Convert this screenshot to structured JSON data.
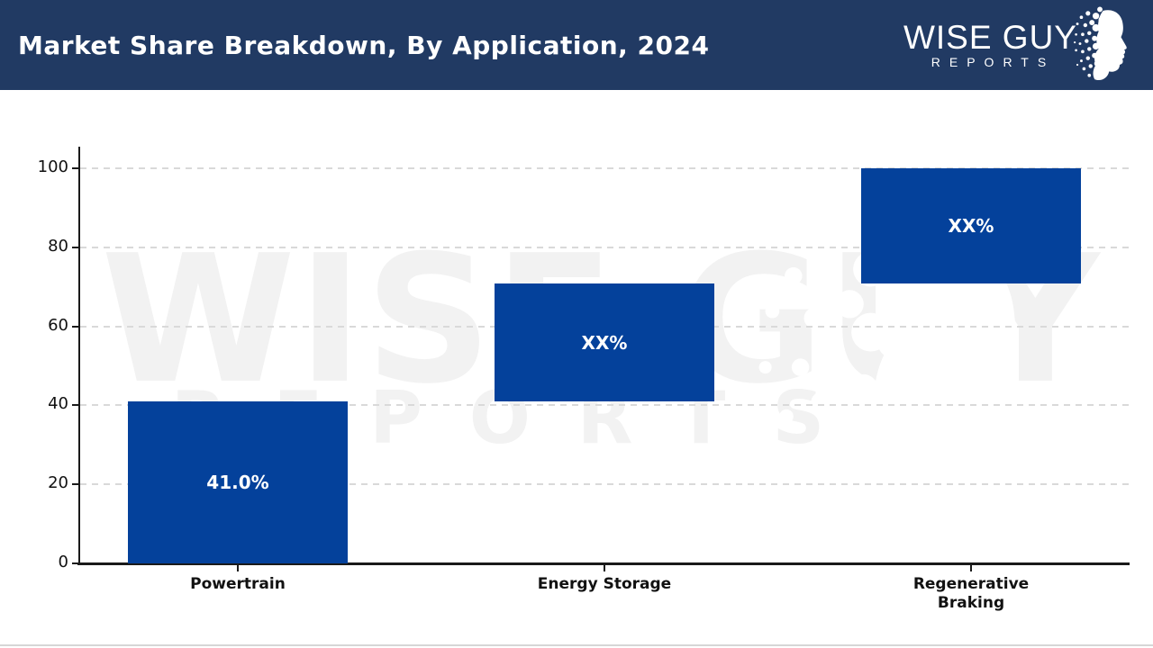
{
  "header": {
    "title": "Market Share Breakdown, By Application, 2024"
  },
  "logo": {
    "line1": "WISE GUY",
    "line2": "REPORTS"
  },
  "watermark": {
    "line1": "WISE GUY",
    "line2": "REPORTS"
  },
  "chart_data": {
    "type": "bar",
    "subtype": "waterfall",
    "title": "Market Share Breakdown, By Application, 2024",
    "categories": [
      "Powertrain",
      "Energy Storage",
      "Regenerative Braking"
    ],
    "series": [
      {
        "name": "Market Share",
        "segments": [
          {
            "category": "Powertrain",
            "start": 0,
            "end": 41.0,
            "label": "41.0%"
          },
          {
            "category": "Energy Storage",
            "start": 41.0,
            "end": 70.8,
            "label": "XX%"
          },
          {
            "category": "Regenerative Braking",
            "start": 70.8,
            "end": 100.0,
            "label": "XX%"
          }
        ]
      }
    ],
    "xlabel": "",
    "ylabel": "",
    "ylim": [
      0,
      100
    ],
    "yticks": [
      0,
      20,
      40,
      60,
      80,
      100
    ],
    "grid": "horizontal-dashed",
    "legend": "none",
    "bar_color": "#04419b",
    "bar_label_color": "#ffffff"
  },
  "colors": {
    "header_bg": "#213a63",
    "bar": "#04419b",
    "grid": "#d9d9d9",
    "axis": "#1a1a1a",
    "watermark": "#f2f2f2",
    "background": "#ffffff"
  }
}
